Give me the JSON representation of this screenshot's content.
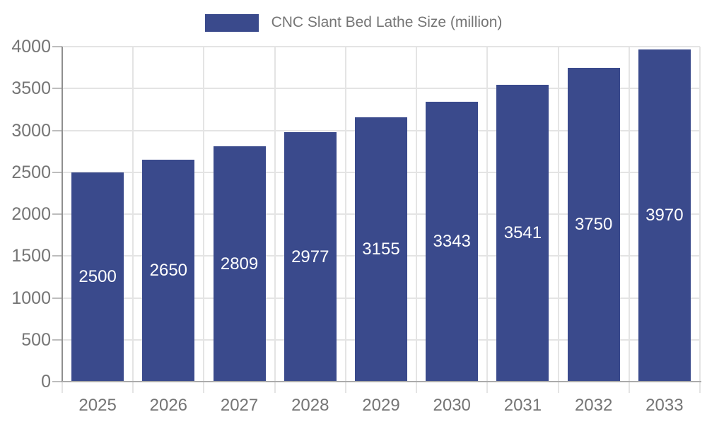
{
  "colors": {
    "bar": "#3A4A8C",
    "bar_label": "#FFFFFF",
    "axis_text": "#757575",
    "grid_line": "#E4E4E4",
    "y_axis_line": "#8F8F8F",
    "x_axis_line": "#ABABAB",
    "background": "#FFFFFF"
  },
  "legend": {
    "label": "CNC Slant Bed Lathe Size (million)"
  },
  "chart_data": {
    "type": "bar",
    "title": "",
    "xlabel": "",
    "ylabel": "",
    "categories": [
      "2025",
      "2026",
      "2027",
      "2028",
      "2029",
      "2030",
      "2031",
      "2032",
      "2033"
    ],
    "series": [
      {
        "name": "CNC Slant Bed Lathe Size (million)",
        "values": [
          2500,
          2650,
          2809,
          2977,
          3155,
          3343,
          3541,
          3750,
          3970
        ]
      }
    ],
    "value_labels_shown": true,
    "ylim": [
      0,
      4000
    ],
    "yticks": [
      0,
      500,
      1000,
      1500,
      2000,
      2500,
      3000,
      3500,
      4000
    ],
    "grid": true,
    "legend_position": "top"
  }
}
